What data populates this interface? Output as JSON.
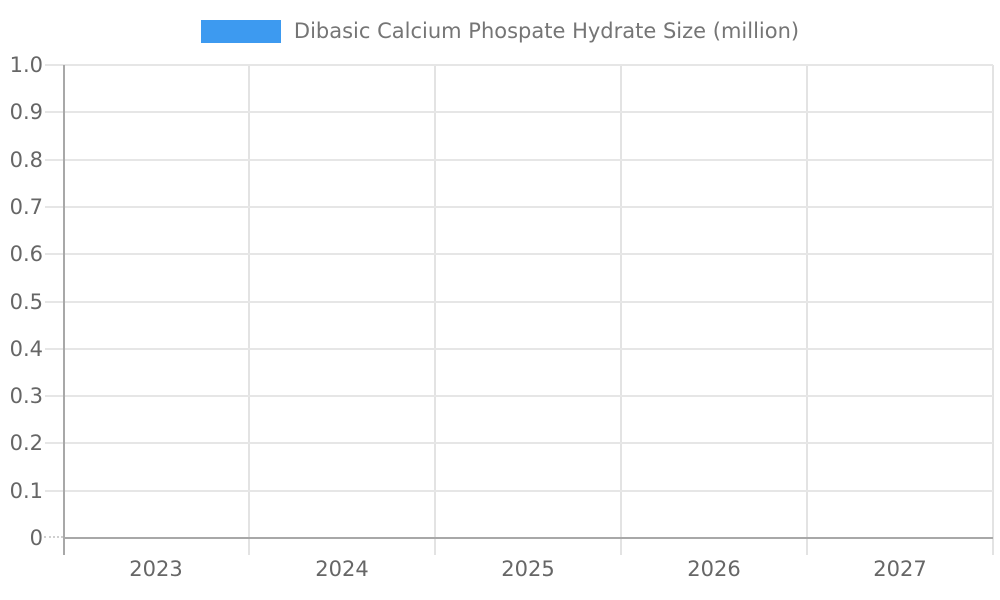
{
  "chart_data": {
    "type": "bar",
    "title": "Dibasic Calcium Phospate Hydrate Size (million)",
    "legend": {
      "label": "Dibasic Calcium Phospate Hydrate Size (million)",
      "position": "top-center",
      "swatch_color": "#3D9AF0"
    },
    "categories": [
      "2023",
      "2024",
      "2025",
      "2026",
      "2027"
    ],
    "series": [
      {
        "name": "Dibasic Calcium Phospate Hydrate Size (million)",
        "color": "#3D9AF0",
        "values": []
      }
    ],
    "xlabel": "",
    "ylabel": "",
    "ylim": [
      0,
      1
    ],
    "ytick_labels": [
      "1.0",
      "0.9",
      "0.8",
      "0.7",
      "0.6",
      "0.5",
      "0.4",
      "0.3",
      "0.2",
      "0.1",
      "0"
    ],
    "grid": true,
    "colors": {
      "h_gridline": "#e6e6e6",
      "v_gridline": "#e3e3e3",
      "axis_line": "#a8a8a8",
      "zero_tick_dotted": "#cfcfcf",
      "axis_tick_label": "#666666",
      "legend_text": "#757575",
      "background": "#ffffff"
    }
  }
}
